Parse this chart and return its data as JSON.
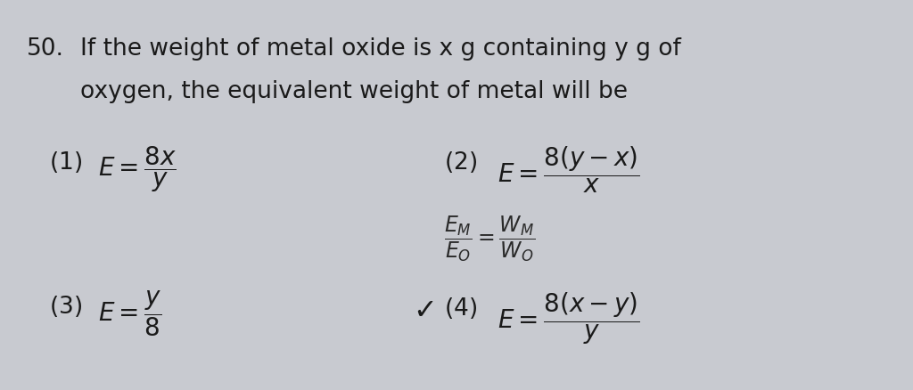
{
  "background_color": "#c8cad0",
  "text_color": "#1a1a1a",
  "handwritten_color": "#2a2a2a",
  "question_number": "50.",
  "question_text_line1": "If the weight of metal oxide is x g containing y g of",
  "question_text_line2": "oxygen, the equivalent weight of metal will be",
  "fs_main": 19,
  "fs_formula": 20,
  "fs_hand": 17
}
